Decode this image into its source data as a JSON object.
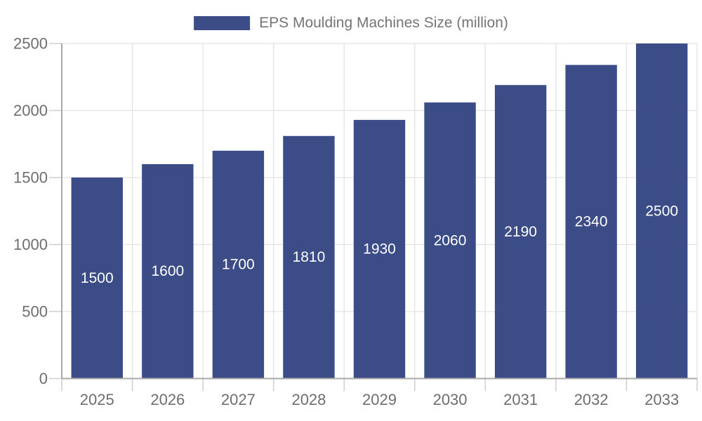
{
  "legend": {
    "label": "EPS Moulding Machines Size (million)"
  },
  "colors": {
    "bar": "#3b4c87",
    "bar_label_text": "#ffffff",
    "axis_text": "#6e6e6e",
    "legend_text": "#757575",
    "grid_line": "#e3e3e3",
    "tick_line": "#cfcfcf",
    "axis_line": "#a9a9a9",
    "background": "#ffffff"
  },
  "chart_data": {
    "type": "bar",
    "title": "",
    "categories": [
      "2025",
      "2026",
      "2027",
      "2028",
      "2029",
      "2030",
      "2031",
      "2032",
      "2033"
    ],
    "series": [
      {
        "name": "EPS Moulding Machines Size (million)",
        "values": [
          1500,
          1600,
          1700,
          1810,
          1930,
          2060,
          2190,
          2340,
          2500
        ]
      }
    ],
    "xlabel": "",
    "ylabel": "",
    "ylim": [
      0,
      2500
    ],
    "yticks": [
      0,
      500,
      1000,
      1500,
      2000,
      2500
    ],
    "grid": true,
    "legend_position": "top-center",
    "data_labels": "inside-center"
  }
}
